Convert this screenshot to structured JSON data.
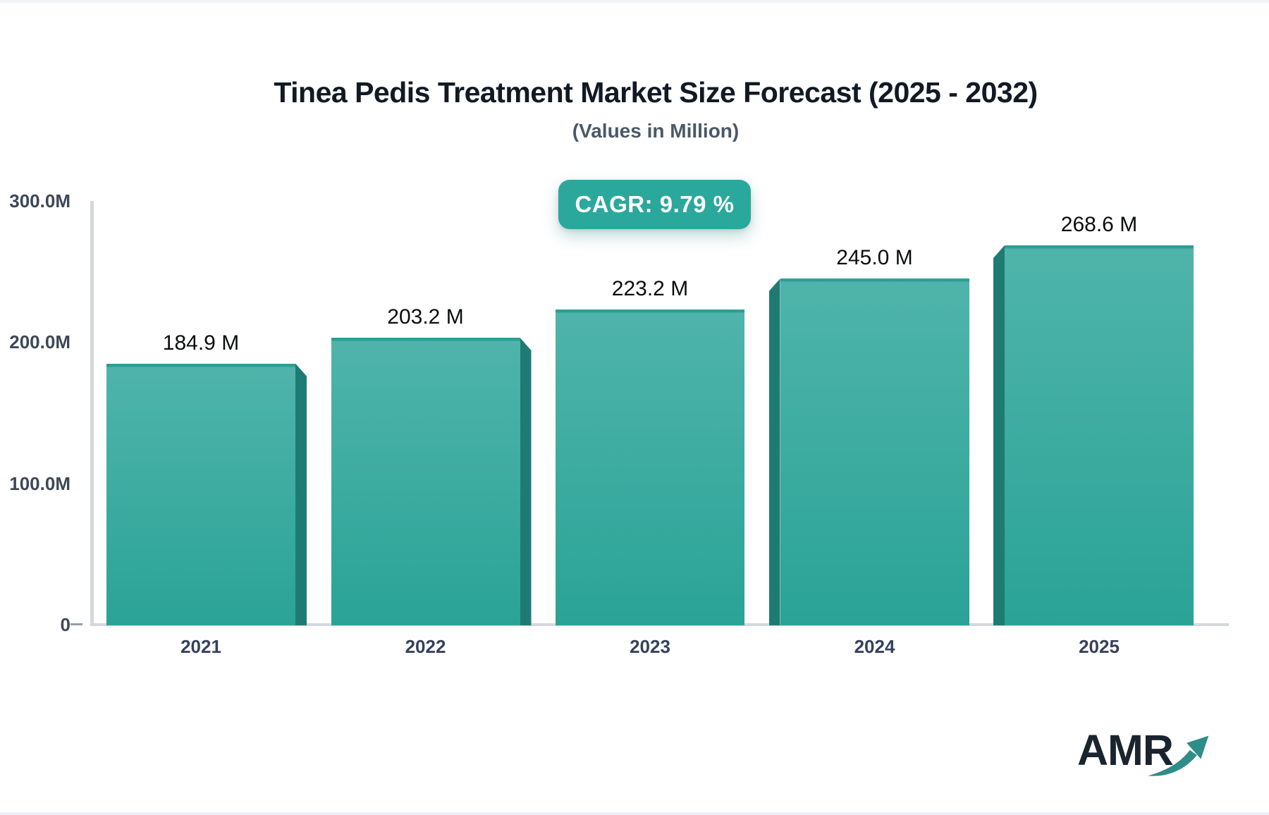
{
  "page": {
    "title": "Tinea Pedis Treatment Market Size Forecast (2025 - 2032)",
    "subtitle": "(Values in Million)",
    "cagr_badge": "CAGR: 9.79 %",
    "logo_text": "AMR"
  },
  "chart_data": {
    "type": "bar",
    "title": "Tinea Pedis Treatment Market Size Forecast (2025 - 2032)",
    "subtitle": "(Values in Million)",
    "cagr_label": "CAGR: 9.79 %",
    "cagr_pct": 9.79,
    "categories": [
      "2021",
      "2022",
      "2023",
      "2024",
      "2025"
    ],
    "values": [
      184.9,
      203.2,
      223.2,
      245.0,
      268.6
    ],
    "value_labels": [
      "184.9 M",
      "203.2 M",
      "223.2 M",
      "245.0 M",
      "268.6 M"
    ],
    "y_ticks": [
      {
        "label": "300.0M",
        "value": 300
      },
      {
        "label": "200.0M",
        "value": 200
      },
      {
        "label": "100.0M",
        "value": 100
      },
      {
        "label": "0",
        "value": 0
      }
    ],
    "ylim": [
      0,
      300
    ],
    "xlabel": "",
    "ylabel": "",
    "grid": false,
    "legend": false,
    "colors": {
      "bar_face_top": "#4FB4AB",
      "bar_face_bottom": "#2AA396",
      "bar_top_edge": "#2E9E95",
      "bar_side": "#1E7B74",
      "badge_bg": "#2AA89C",
      "axis_line": "#D4D7DC",
      "title": "#111A24",
      "subtitle": "#4B5868",
      "tick_text": "#3D4858",
      "value_text": "#0C0D0E",
      "logo_dark": "#1A242F",
      "logo_teal": "#2F8D88"
    }
  }
}
